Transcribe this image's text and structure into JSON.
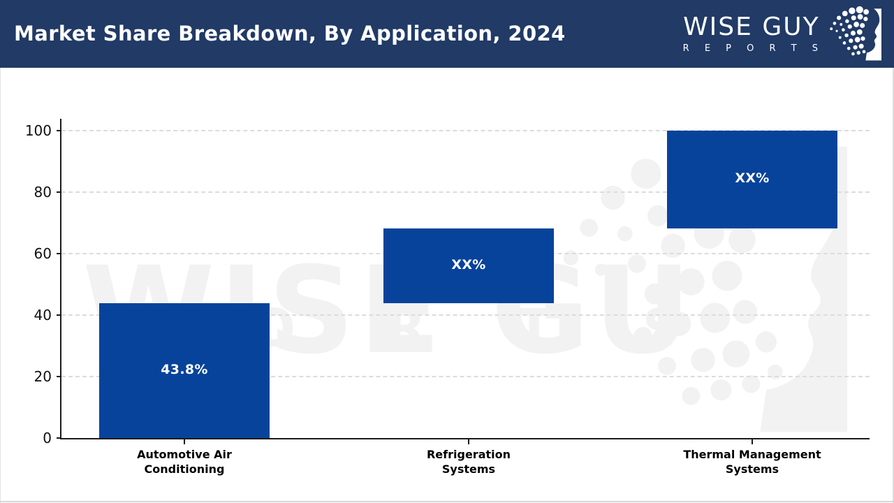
{
  "header": {
    "title": "Market Share Breakdown, By Application, 2024",
    "logo": {
      "line1": "WISE GUY",
      "line2": "R E P O R T S"
    }
  },
  "watermark": {
    "line1": "WISE GU",
    "line2": "P O R T S"
  },
  "colors": {
    "header_bg": "#213a66",
    "bar": "#08439b",
    "bar_label_text": "#ffffff",
    "gridline": "#dcdcdc",
    "axis": "#1a1a1a",
    "watermark": "#f2f2f2"
  },
  "chart_data": {
    "type": "bar",
    "subtype": "waterfall",
    "title": "Market Share Breakdown, By Application, 2024",
    "categories": [
      "Automotive Air\nConditioning",
      "Refrigeration\nSystems",
      "Thermal Management\nSystems"
    ],
    "segments": [
      {
        "category": "Automotive Air Conditioning",
        "start": 0,
        "end": 43.8,
        "value_estimate": 43.8,
        "label": "43.8%"
      },
      {
        "category": "Refrigeration Systems",
        "start": 43.8,
        "end": 68.2,
        "value_estimate": 24.4,
        "label": "XX%"
      },
      {
        "category": "Thermal Management Systems",
        "start": 68.2,
        "end": 100,
        "value_estimate": 31.8,
        "label": "XX%"
      }
    ],
    "xlabel": "",
    "ylabel": "",
    "ylim": [
      0,
      100
    ],
    "yticks": [
      0,
      20,
      40,
      60,
      80,
      100
    ],
    "grid": "horizontal dashed",
    "legend": "none",
    "bar_color": "#08439b"
  }
}
